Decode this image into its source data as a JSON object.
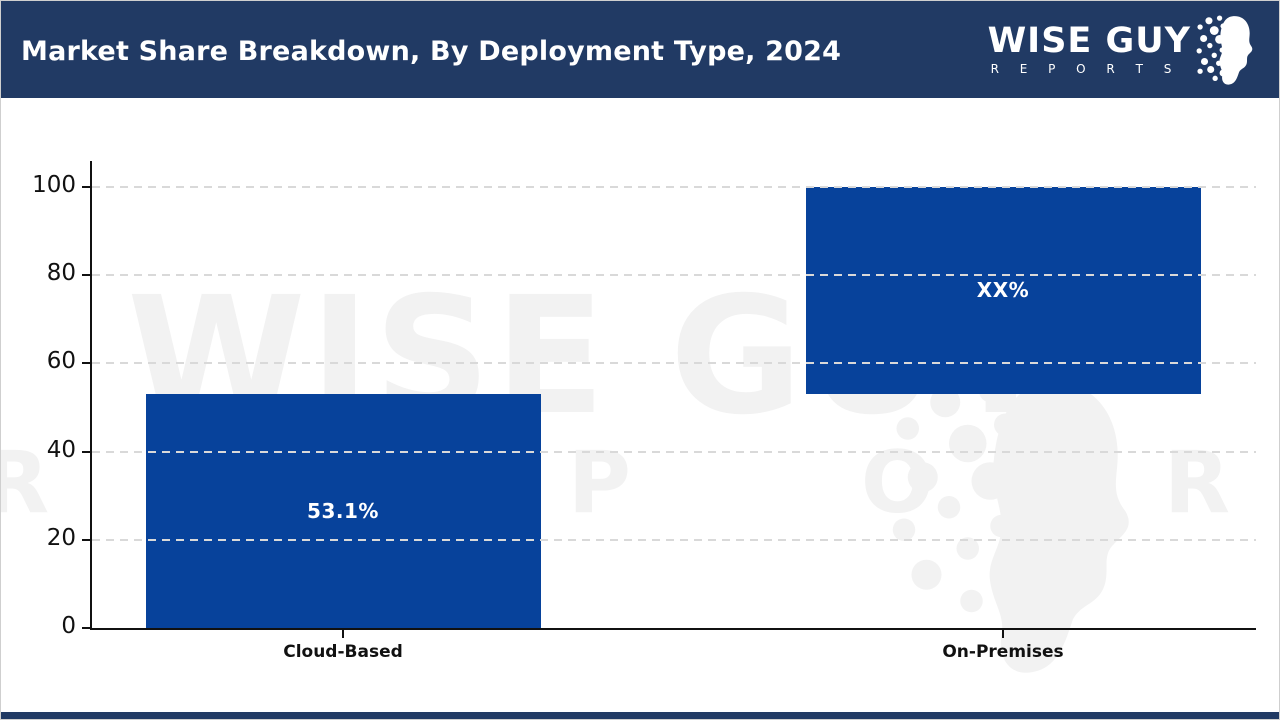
{
  "header": {
    "title": "Market Share Breakdown, By Deployment Type, 2024"
  },
  "logo": {
    "line1": "WISE GUY",
    "line2": "R E P O R T S",
    "face_icon": "head-profile-dots-icon"
  },
  "watermark": {
    "line1": "WISE GUY",
    "line2": "R E P O R T S"
  },
  "colors": {
    "header_bg": "#213a64",
    "footer_bg": "#213a64",
    "bar": "#07429b",
    "axis": "#111111",
    "grid": "#d9d9d9",
    "bar_label": "#ffffff",
    "watermark": "#f2f2f2"
  },
  "chart_data": {
    "type": "bar",
    "subtype": "waterfall",
    "title": "Market Share Breakdown, By Deployment Type, 2024",
    "categories": [
      "Cloud-Based",
      "On-Premises"
    ],
    "series": [
      {
        "name": "Cloud-Based",
        "start": 0,
        "end": 53.1,
        "label": "53.1%"
      },
      {
        "name": "On-Premises",
        "start": 53.1,
        "end": 100,
        "label": "XX%"
      }
    ],
    "values": [
      53.1,
      46.9
    ],
    "yticks": [
      0,
      20,
      40,
      60,
      80,
      100
    ],
    "ylim": [
      0,
      105.9
    ],
    "xlabel": "",
    "ylabel": "",
    "grid": "dashed-horizontal",
    "legend": "none"
  }
}
